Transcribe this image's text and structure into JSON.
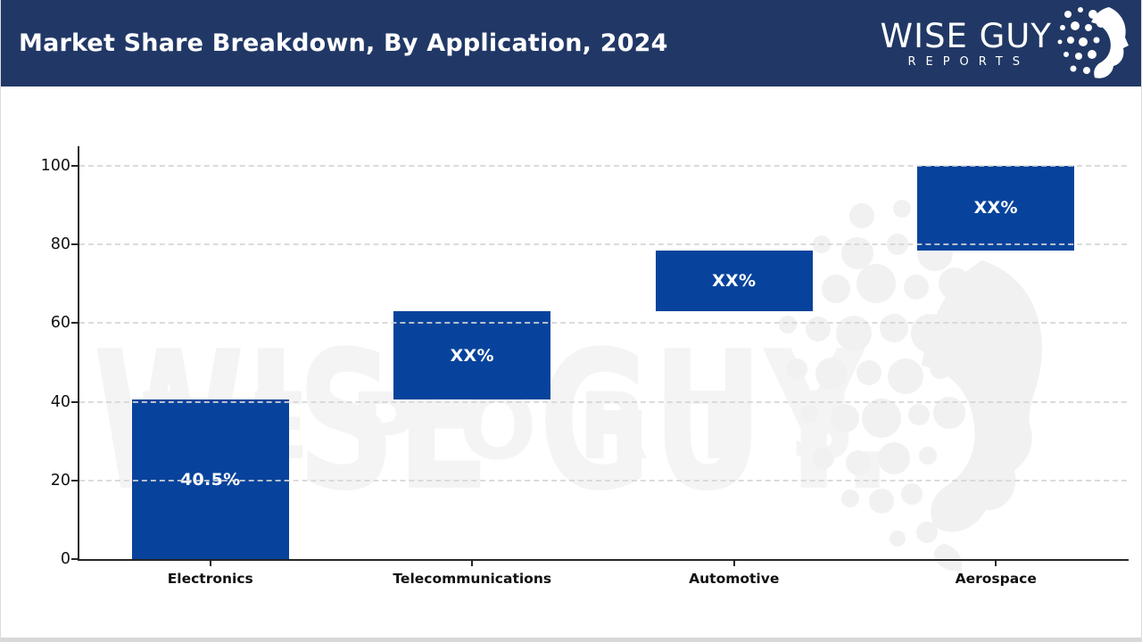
{
  "header": {
    "title": "Market Share Breakdown, By Application, 2024",
    "background_color": "#213866",
    "logo": {
      "line1": "WISE GUY",
      "line2": "REPORTS"
    }
  },
  "watermark": {
    "line1": "WISE GUY.",
    "line2": "REPORTS"
  },
  "chart_data": {
    "type": "bar",
    "subtype": "waterfall-floating-bars",
    "title": "Market Share Breakdown, By Application, 2024",
    "categories": [
      "Electronics",
      "Telecommunications",
      "Automotive",
      "Aerospace"
    ],
    "segments": [
      {
        "category": "Electronics",
        "start": 0,
        "end": 40.5,
        "label": "40.5%"
      },
      {
        "category": "Telecommunications",
        "start": 40.5,
        "end": 63,
        "label": "XX%"
      },
      {
        "category": "Automotive",
        "start": 63,
        "end": 78.5,
        "label": "XX%"
      },
      {
        "category": "Aerospace",
        "start": 78.5,
        "end": 100,
        "label": "XX%"
      }
    ],
    "xlabel": "",
    "ylabel": "",
    "ylim": [
      0,
      100
    ],
    "yticks": [
      0,
      20,
      40,
      60,
      80,
      100
    ],
    "grid": "horizontal dashed gridlines, drawn above bars",
    "legend": "none",
    "bar_color": "#07439c",
    "bar_label_color": "#ffffff",
    "axis_color": "#262626",
    "gridline_color": "#d5d5d5"
  }
}
